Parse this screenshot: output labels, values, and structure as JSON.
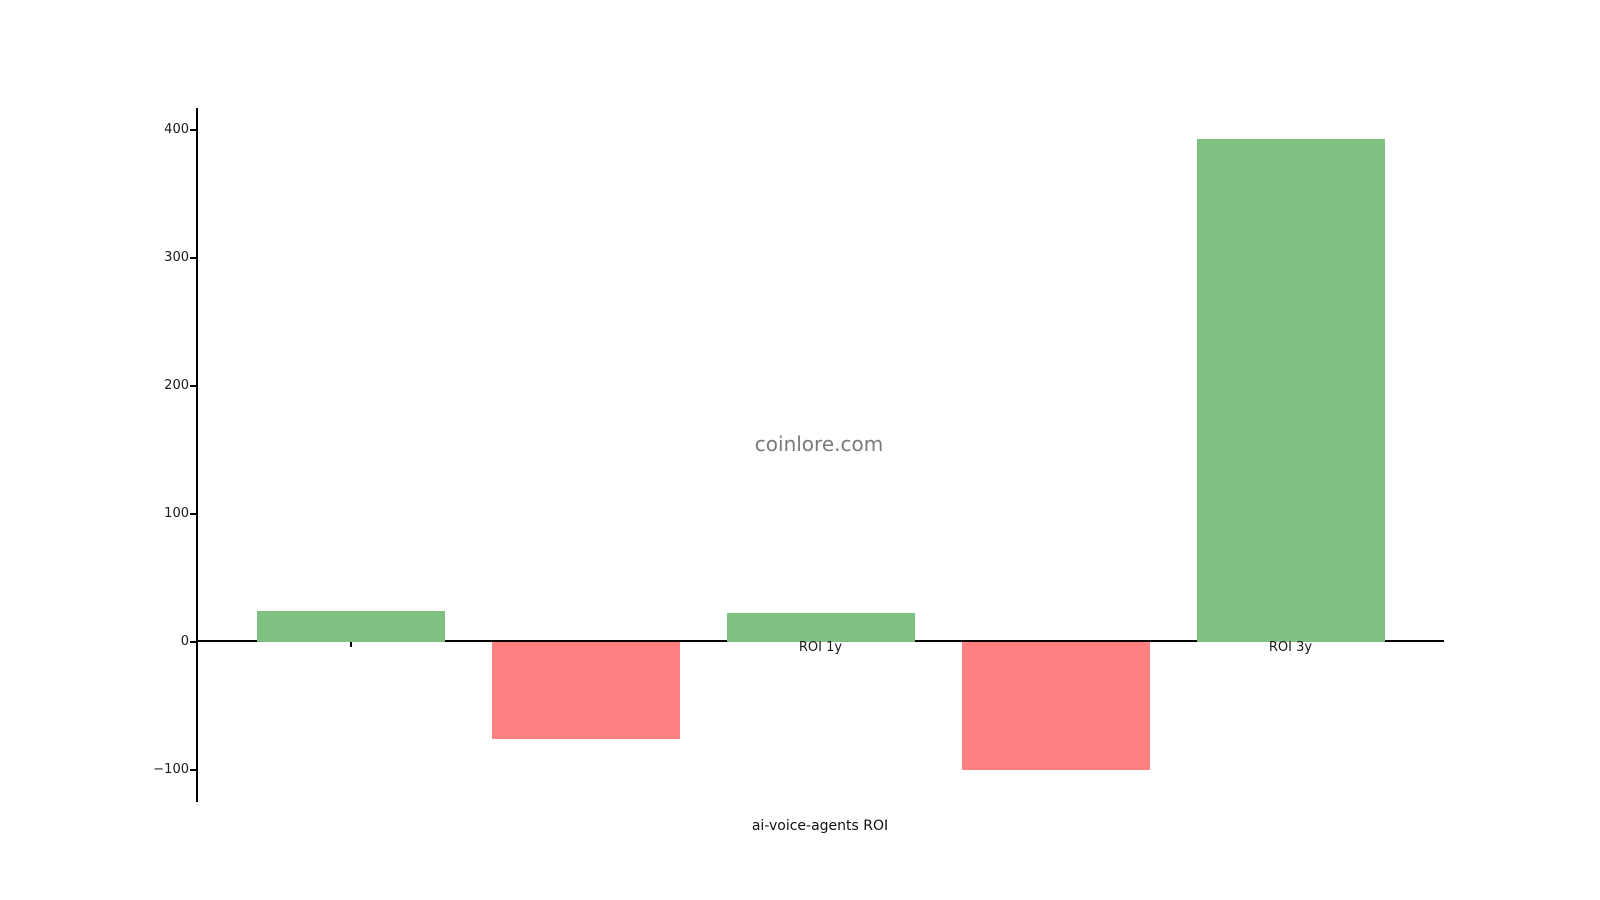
{
  "page": {
    "background": "#ffffff"
  },
  "watermark": {
    "text": "coinlore.com",
    "color": "#7a7a7a"
  },
  "chart_data": {
    "type": "bar",
    "title": "ai-voice-agents ROI",
    "title_position": "bottom-center",
    "watermark": "coinlore.com",
    "categories": [
      "",
      "",
      "ROI 1y",
      "",
      "ROI 3y"
    ],
    "values": [
      24,
      -76,
      23,
      -100,
      393
    ],
    "bar_colors": [
      "#80c080",
      "#ff8080",
      "#80c080",
      "#ff8080",
      "#80c080"
    ],
    "colors": {
      "positive": "#80c080",
      "negative": "#ff8080",
      "axis": "#000000",
      "tick_text": "#1a1a1a"
    },
    "xlabel": "",
    "ylabel": "",
    "yticks": [
      -100,
      0,
      100,
      200,
      300,
      400
    ],
    "ylim": [
      -125,
      417
    ],
    "grid": false,
    "legend": "none",
    "baseline_at_zero": true
  }
}
